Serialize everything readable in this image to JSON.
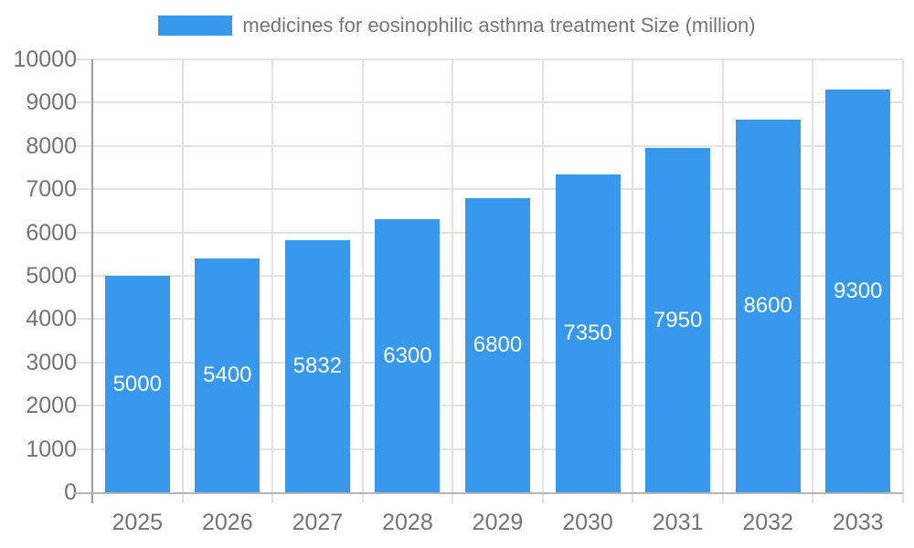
{
  "legend": {
    "label": "medicines for eosinophilic asthma treatment Size (million)"
  },
  "chart_data": {
    "type": "bar",
    "title": "",
    "categories": [
      "2025",
      "2026",
      "2027",
      "2028",
      "2029",
      "2030",
      "2031",
      "2032",
      "2033"
    ],
    "series": [
      {
        "name": "medicines for eosinophilic asthma treatment Size (million)",
        "values": [
          5000,
          5400,
          5832,
          6300,
          6800,
          7350,
          7950,
          8600,
          9300
        ]
      }
    ],
    "value_labels_shown": true,
    "xlabel": "",
    "ylabel": "",
    "ylim": [
      0,
      10000
    ],
    "yticks": [
      0,
      1000,
      2000,
      3000,
      4000,
      5000,
      6000,
      7000,
      8000,
      9000,
      10000
    ],
    "grid": true,
    "legend_position": "top-center",
    "colors": {
      "bar": "#3899ec",
      "bar_value_label": "#ffffff",
      "axis_text": "#737373",
      "legend_text": "#757575",
      "gridline": "#e2e2e2",
      "y_axis_line": "#9b9b9b",
      "x_axis_line": "#b5b5b5",
      "background": "#ffffff"
    }
  }
}
